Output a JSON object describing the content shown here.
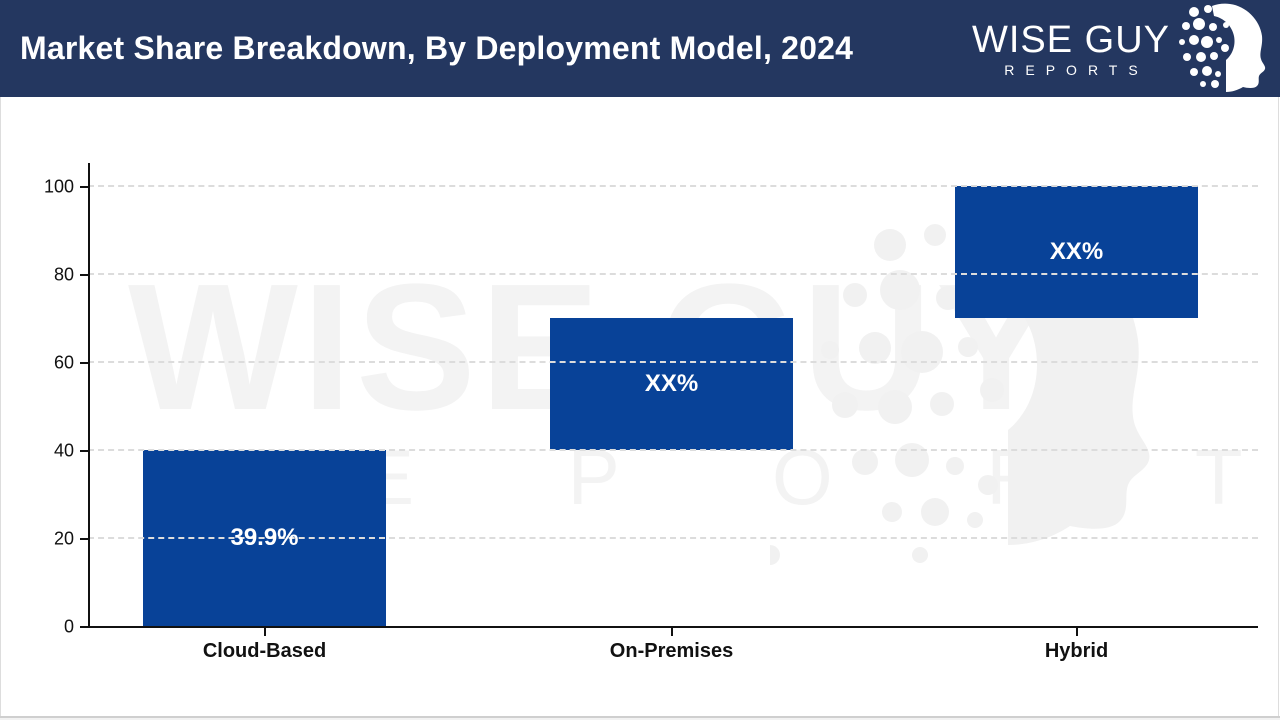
{
  "header": {
    "title": "Market Share Breakdown, By Deployment Model, 2024",
    "bg_color": "#243760",
    "logo": {
      "line1": "WISE GUY",
      "line2": "REPORTS"
    }
  },
  "watermark": {
    "line1": "WISE GUY",
    "line2": "R E P O R T S"
  },
  "chart_data": {
    "type": "bar",
    "variant": "floating-segment (waterfall-style market share)",
    "title": "Market Share Breakdown, By Deployment Model, 2024",
    "categories": [
      "Cloud-Based",
      "On-Premises",
      "Hybrid"
    ],
    "segments": [
      {
        "category": "Cloud-Based",
        "start": 0,
        "end": 39.9,
        "label": "39.9%"
      },
      {
        "category": "On-Premises",
        "start": 40,
        "end": 70,
        "label": "XX%"
      },
      {
        "category": "Hybrid",
        "start": 70,
        "end": 100,
        "label": "XX%"
      }
    ],
    "xlabel": "",
    "ylabel": "",
    "ylim": [
      0,
      100
    ],
    "yticks": [
      0,
      20,
      40,
      60,
      80,
      100
    ],
    "grid": "horizontal dashed, drawn above bars",
    "legend": "none",
    "bar_color": "#084298",
    "bar_label_color": "#ffffff",
    "axis_color": "#111111",
    "gridline_color": "#dcdcdc"
  }
}
